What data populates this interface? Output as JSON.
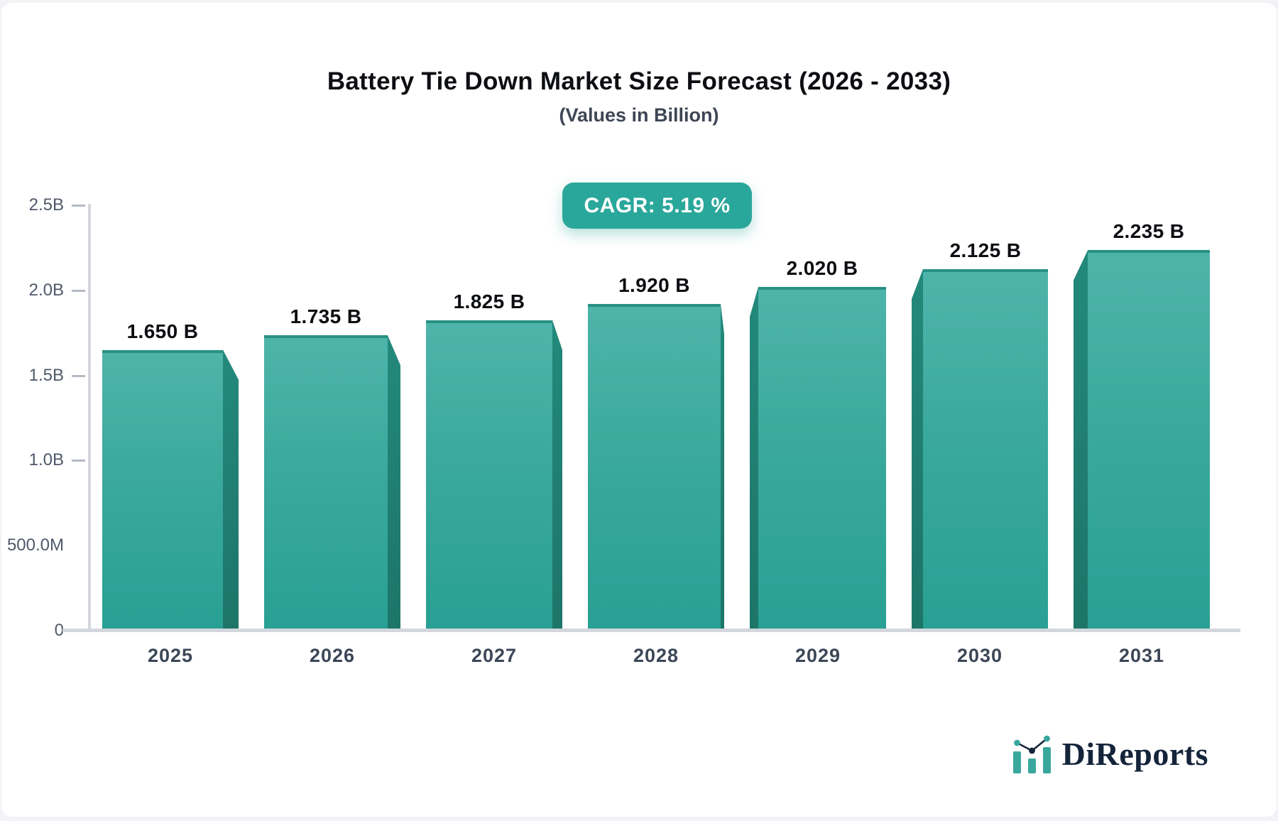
{
  "title": "Battery Tie Down Market Size Forecast (2026 - 2033)",
  "subtitle": "(Values in Billion)",
  "badge": {
    "label": "CAGR: 5.19 %",
    "bg_color": "#2aa79b",
    "text_color": "#ffffff"
  },
  "chart_data": {
    "type": "bar",
    "title": "Battery Tie Down Market Size Forecast (2026 - 2033)",
    "subtitle": "(Values in Billion)",
    "categories": [
      "2025",
      "2026",
      "2027",
      "2028",
      "2029",
      "2030",
      "2031"
    ],
    "values": [
      1.65,
      1.735,
      1.825,
      1.92,
      2.02,
      2.125,
      2.235
    ],
    "value_labels": [
      "1.650 B",
      "1.735 B",
      "1.825 B",
      "1.920 B",
      "2.020 B",
      "2.125 B",
      "2.235 B"
    ],
    "unit": "Billion",
    "xlabel": "",
    "ylabel": "",
    "ylim": [
      0,
      2.5
    ],
    "yticks": [
      {
        "label": "2.5B",
        "value": 2.5,
        "tick": true
      },
      {
        "label": "2.0B",
        "value": 2.0,
        "tick": true
      },
      {
        "label": "1.5B",
        "value": 1.5,
        "tick": true
      },
      {
        "label": "1.0B",
        "value": 1.0,
        "tick": true
      },
      {
        "label": "500.0M",
        "value": 0.5,
        "tick": false
      },
      {
        "label": "0",
        "value": 0.0,
        "tick": true
      }
    ],
    "grid": false,
    "legend": null,
    "bar_colors": {
      "front_top": "#4eb4aa",
      "front_bottom": "#28a093",
      "side": "#1f7d70",
      "cap": "#279183"
    }
  },
  "logo": {
    "text": "DiReports",
    "icon": "mini-bar-chart-icon",
    "text_color": "#14243a",
    "icon_color": "#3aa79e"
  }
}
